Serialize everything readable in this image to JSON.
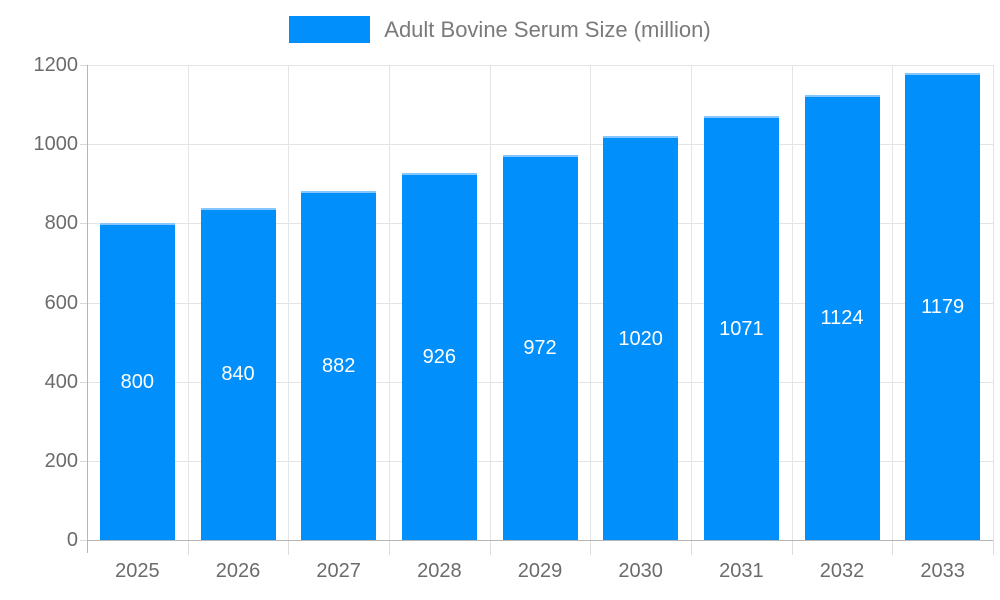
{
  "legend": {
    "label": "Adult Bovine Serum Size (million)"
  },
  "chart_data": {
    "type": "bar",
    "title": "Adult Bovine Serum Size (million)",
    "categories": [
      "2025",
      "2026",
      "2027",
      "2028",
      "2029",
      "2030",
      "2031",
      "2032",
      "2033"
    ],
    "values": [
      800,
      840,
      882,
      926,
      972,
      1020,
      1071,
      1124,
      1179
    ],
    "series": [
      {
        "name": "Adult Bovine Serum Size (million)",
        "values": [
          800,
          840,
          882,
          926,
          972,
          1020,
          1071,
          1124,
          1179
        ]
      }
    ],
    "xlabel": "",
    "ylabel": "",
    "ylim": [
      0,
      1200
    ],
    "yticks": [
      0,
      200,
      400,
      600,
      800,
      1000,
      1200
    ],
    "grid": "both",
    "legend_position": "top",
    "value_labels": "inside-center",
    "colors": {
      "bar": "#008FFB",
      "bar_top_edge": "#84c6fd",
      "value_label": "#ffffff",
      "axis_label": "#6b6b6b",
      "legend_text": "#7a7a7a",
      "gridline": "#e4e4e4",
      "axis_line": "#b6b6b6",
      "background": "#ffffff"
    }
  }
}
